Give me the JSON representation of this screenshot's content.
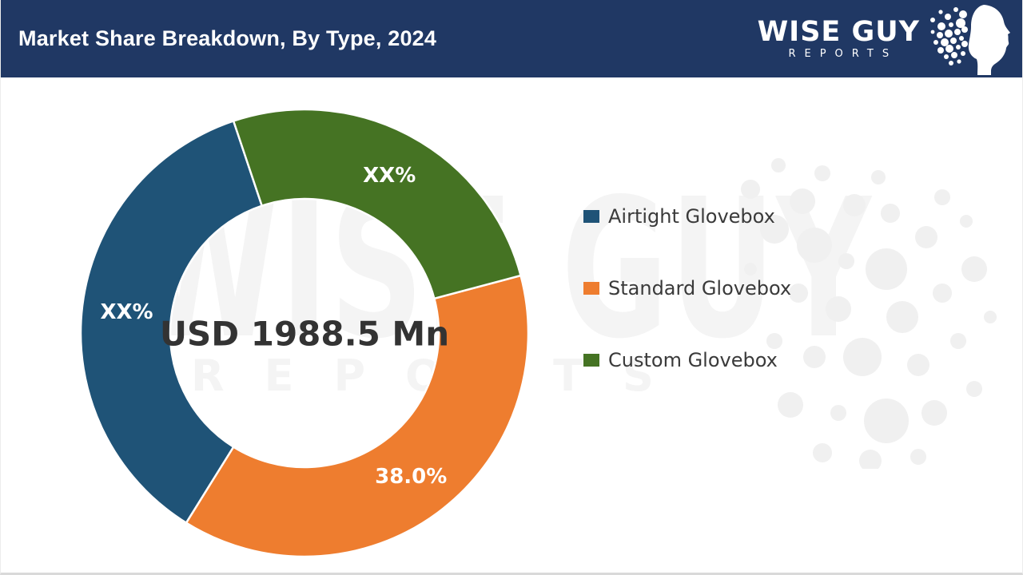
{
  "header": {
    "title": "Market Share Breakdown, By Type, 2024",
    "bg_color": "#203864",
    "logo": {
      "line1": "WISE GUY",
      "line2": "REPORTS"
    }
  },
  "watermark": {
    "line1": "WISE GUY",
    "line2": "REPORTS"
  },
  "chart_data": {
    "type": "pie",
    "variant": "donut",
    "title": "Market Share Breakdown, By Type, 2024",
    "center_label": "USD 1988.5 Mn",
    "categories": [
      "Airtight Glovebox",
      "Standard Glovebox",
      "Custom Glovebox"
    ],
    "values": [
      36,
      38,
      26
    ],
    "display_labels": [
      "XX%",
      "38.0%",
      "XX%"
    ],
    "colors": [
      "#1f5377",
      "#ee7d2f",
      "#457323"
    ],
    "start_angle_deg": 108.5,
    "counterclockwise": true,
    "inner_radius_ratio": 0.6,
    "legend_position": "right",
    "slice_label_color": "#ffffff",
    "slice_separator_color": "#ffffff"
  },
  "legend": {
    "items": [
      {
        "label": "Airtight Glovebox",
        "color": "#1f5377"
      },
      {
        "label": "Standard Glovebox",
        "color": "#ee7d2f"
      },
      {
        "label": "Custom Glovebox",
        "color": "#457323"
      }
    ]
  }
}
